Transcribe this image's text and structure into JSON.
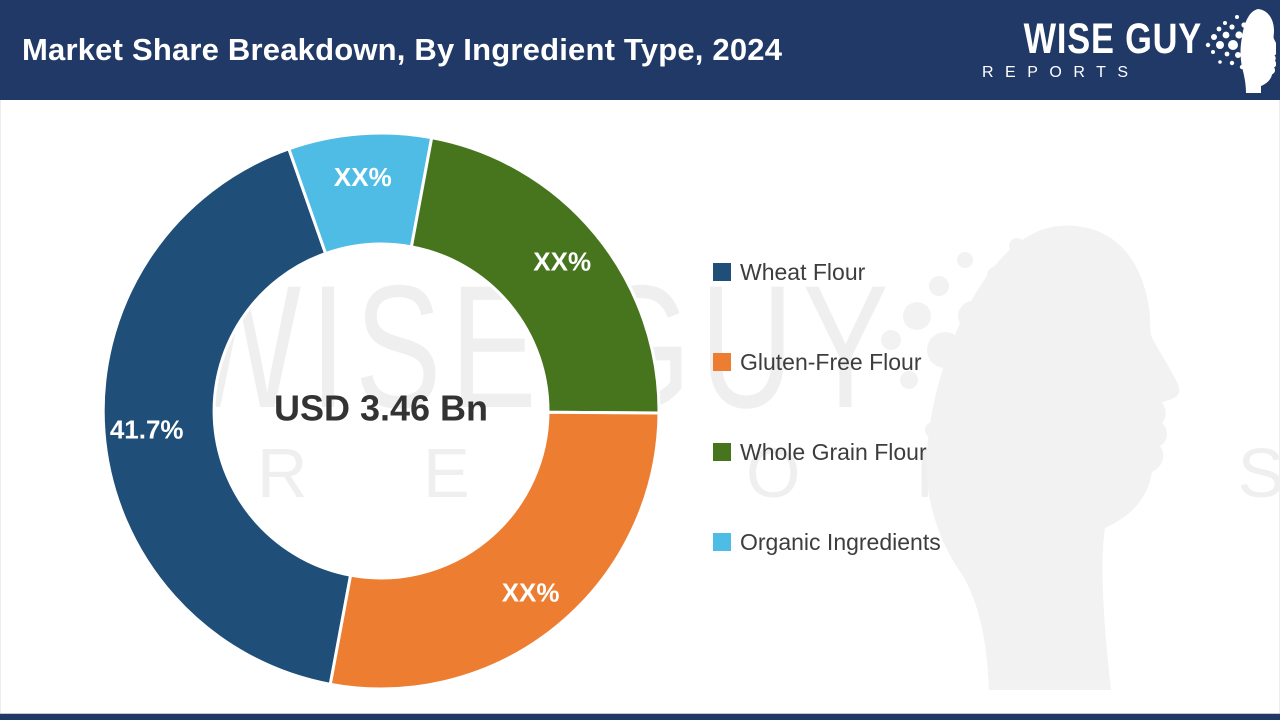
{
  "header": {
    "title": "Market Share Breakdown, By Ingredient Type, 2024",
    "logo": {
      "line1": "WISE GUY",
      "line2": "REPORTS"
    },
    "bg_color": "#213966"
  },
  "watermark": {
    "line1": "WISE GUY",
    "line2": "R E P O R T S"
  },
  "chart_data": {
    "type": "pie",
    "subtype": "donut",
    "title": "Market Share Breakdown, By Ingredient Type, 2024",
    "center_label": "USD 3.46 Bn",
    "legend_position": "right",
    "rotation_deg": 190.5,
    "clockwise_order": [
      0,
      3,
      2,
      1
    ],
    "segments": [
      {
        "label": "Wheat Flour",
        "value_pct": 41.7,
        "slice_label": "41.7%",
        "color": "#1F4E78"
      },
      {
        "label": "Gluten-Free Flour",
        "value_pct": 27.8,
        "slice_label": "XX%",
        "color": "#ED7D31"
      },
      {
        "label": "Whole Grain Flour",
        "value_pct": 22.2,
        "slice_label": "XX%",
        "color": "#46751E"
      },
      {
        "label": "Organic Ingredients",
        "value_pct": 8.3,
        "slice_label": "XX%",
        "color": "#4FBCE5"
      }
    ]
  }
}
